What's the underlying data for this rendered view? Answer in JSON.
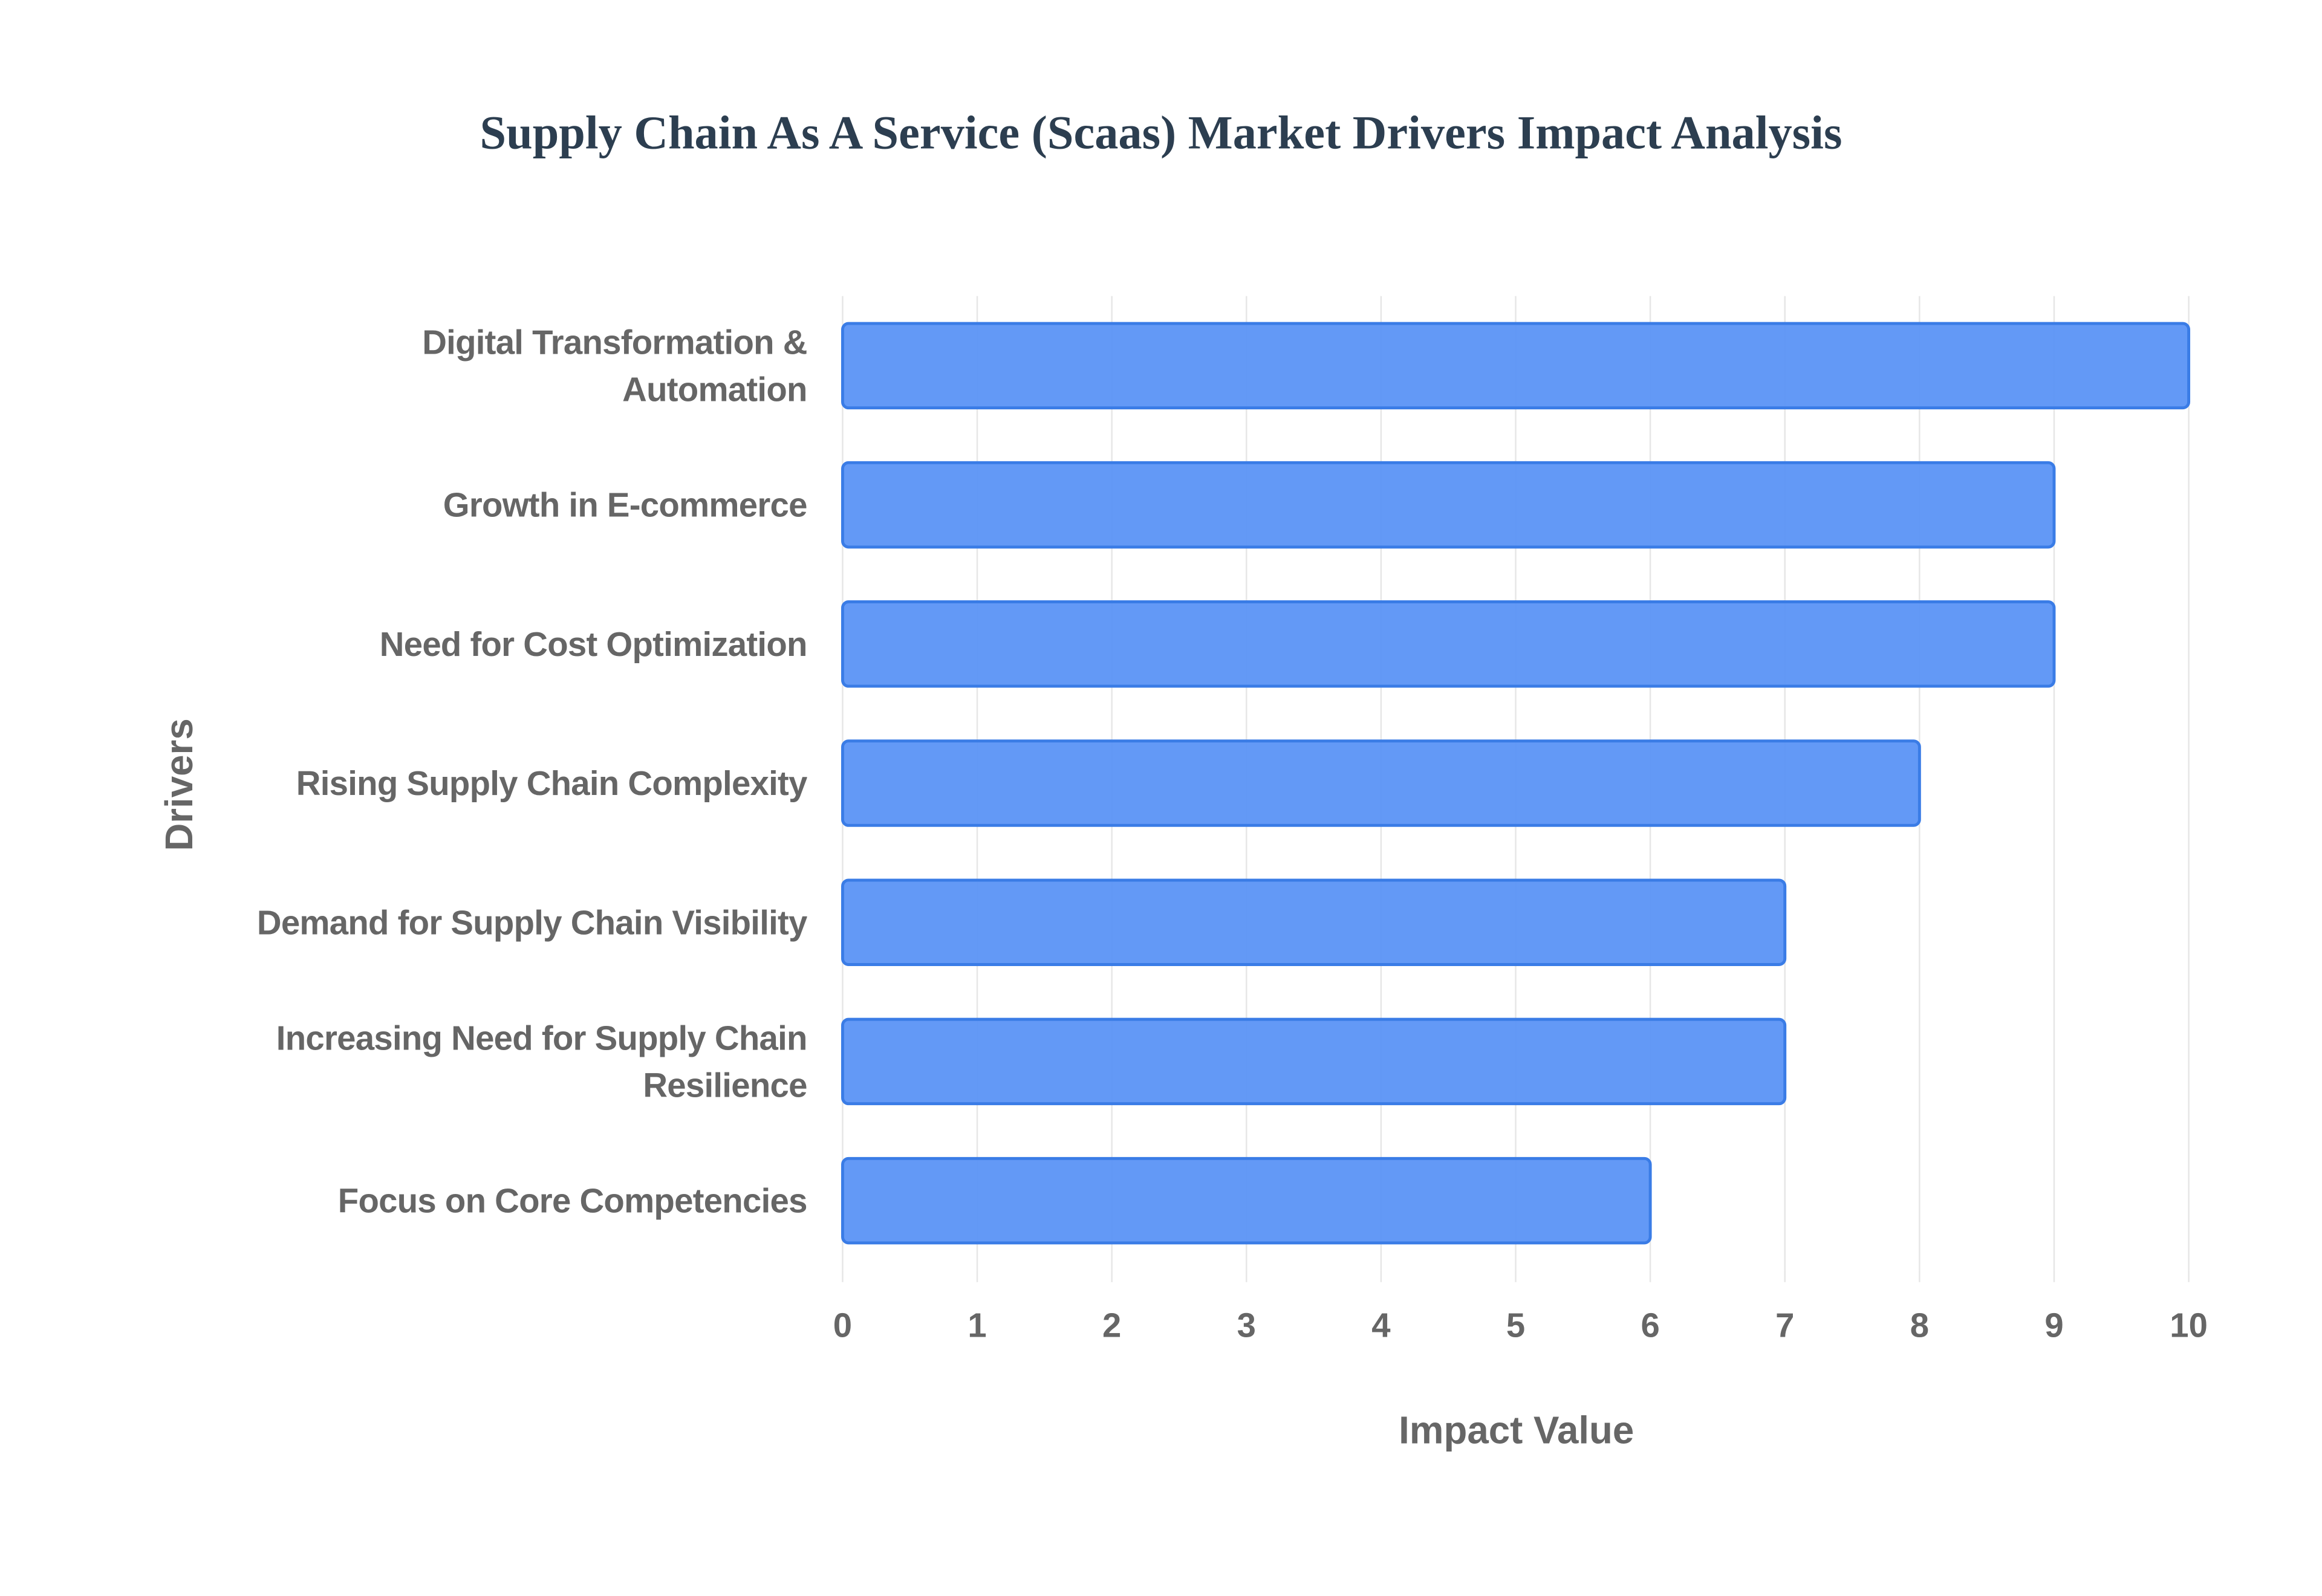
{
  "chart_data": {
    "type": "bar",
    "orientation": "horizontal",
    "title": "Supply Chain As A Service (Scaas) Market Drivers Impact Analysis",
    "x_label": "Impact Value",
    "y_label": "Drivers",
    "categories": [
      "Digital Transformation & Automation",
      "Growth in E-commerce",
      "Need for Cost Optimization",
      "Rising Supply Chain Complexity",
      "Demand for Supply Chain Visibility",
      "Increasing Need for Supply Chain Resilience",
      "Focus on Core Competencies"
    ],
    "values": [
      10,
      9,
      9,
      8,
      7,
      7,
      6
    ],
    "color": "#5b93f5",
    "xlim": [
      0,
      10
    ],
    "xticks": [
      0,
      1,
      2,
      3,
      4,
      5,
      6,
      7,
      8,
      9,
      10
    ],
    "grid": true
  }
}
